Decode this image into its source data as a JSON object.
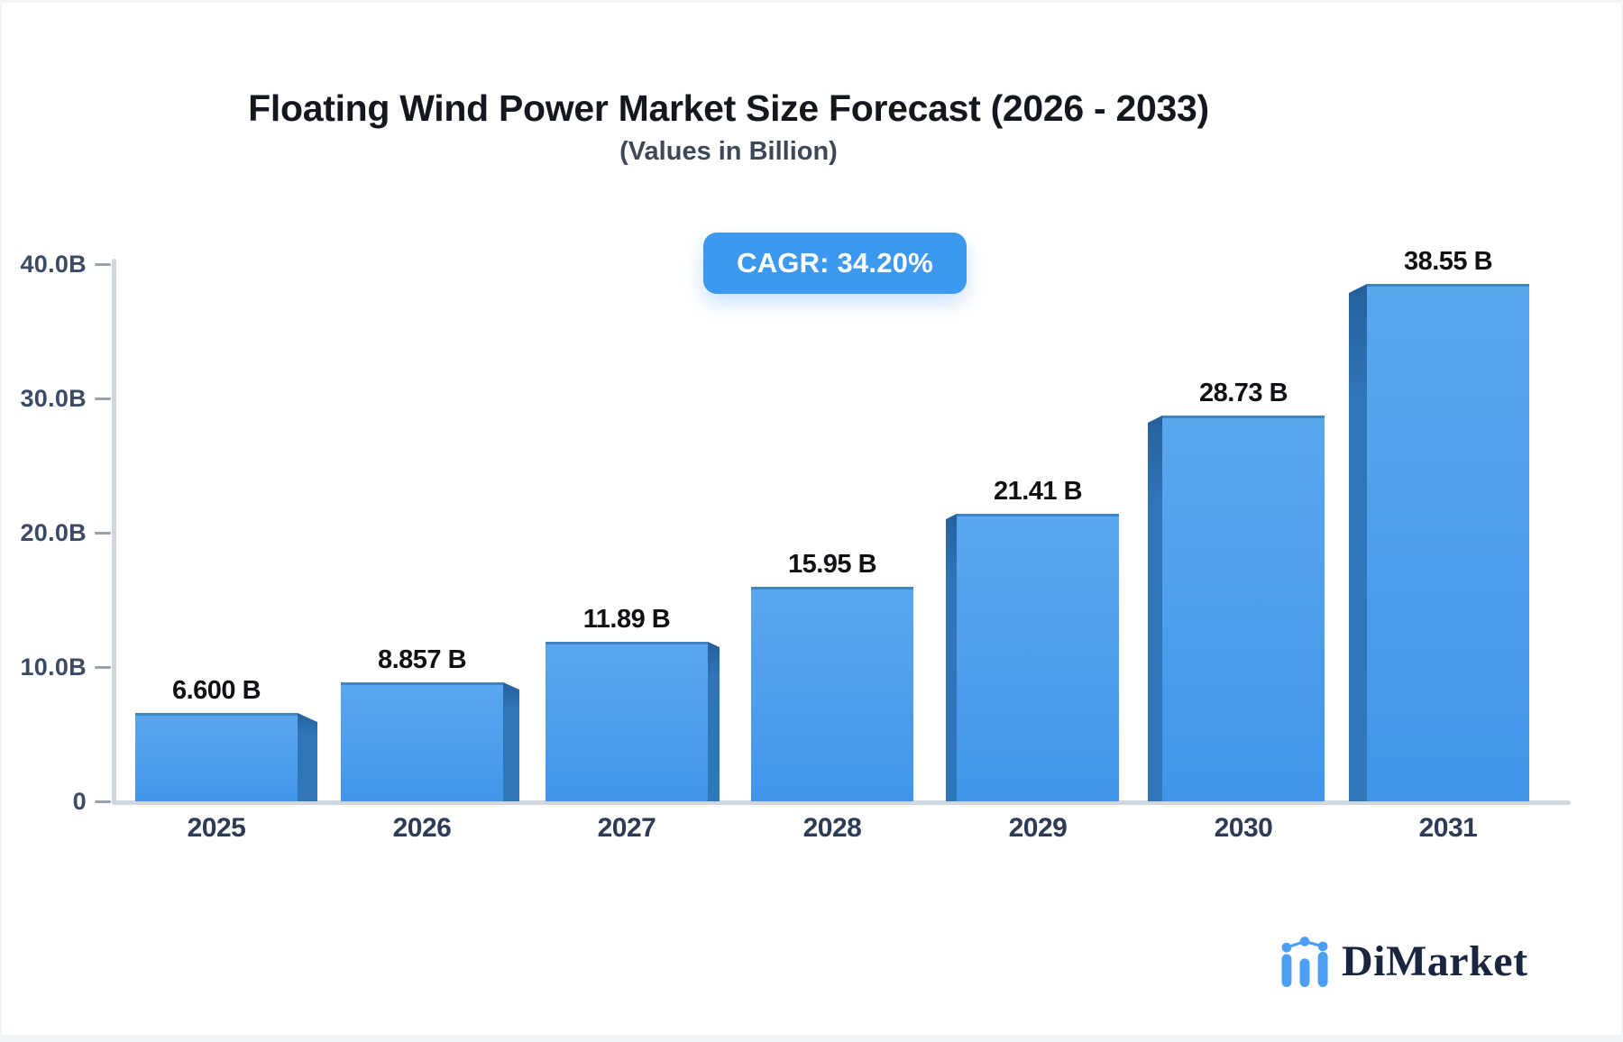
{
  "header": {
    "title": "Floating Wind Power Market Size Forecast (2026 - 2033)",
    "subtitle": "(Values in Billion)",
    "cagr_label": "CAGR: 34.20%"
  },
  "logo": {
    "text": "DiMarket",
    "icon": "bar-chart-trend-icon"
  },
  "colors": {
    "badge_bg": "#3c99ef",
    "bar_face_top": "#5ba7ee",
    "bar_face_bottom": "#4196ea",
    "bar_side": "#2f75b7",
    "axis_line": "#d2d7dd",
    "logo_blue": "#4ba0f5",
    "logo_text": "#1a2540"
  },
  "chart_data": {
    "type": "bar",
    "title": "Floating Wind Power Market Size Forecast (2026 - 2033)",
    "subtitle": "(Values in Billion)",
    "annotation": "CAGR: 34.20%",
    "categories": [
      "2025",
      "2026",
      "2027",
      "2028",
      "2029",
      "2030",
      "2031"
    ],
    "values": [
      6.6,
      8.857,
      11.89,
      15.95,
      21.41,
      28.73,
      38.55
    ],
    "value_labels": [
      "6.600 B",
      "8.857 B",
      "11.89 B",
      "15.95 B",
      "21.41 B",
      "28.73 B",
      "38.55 B"
    ],
    "y_ticks": [
      {
        "value": 0,
        "label": "0"
      },
      {
        "value": 10,
        "label": "10.0B"
      },
      {
        "value": 20,
        "label": "20.0B"
      },
      {
        "value": 30,
        "label": "30.0B"
      },
      {
        "value": 40,
        "label": "40.0B"
      }
    ],
    "ylim": [
      0,
      40
    ],
    "xlabel": "",
    "ylabel": "",
    "grid": false,
    "legend": false,
    "bar_style": "3d-blue"
  }
}
